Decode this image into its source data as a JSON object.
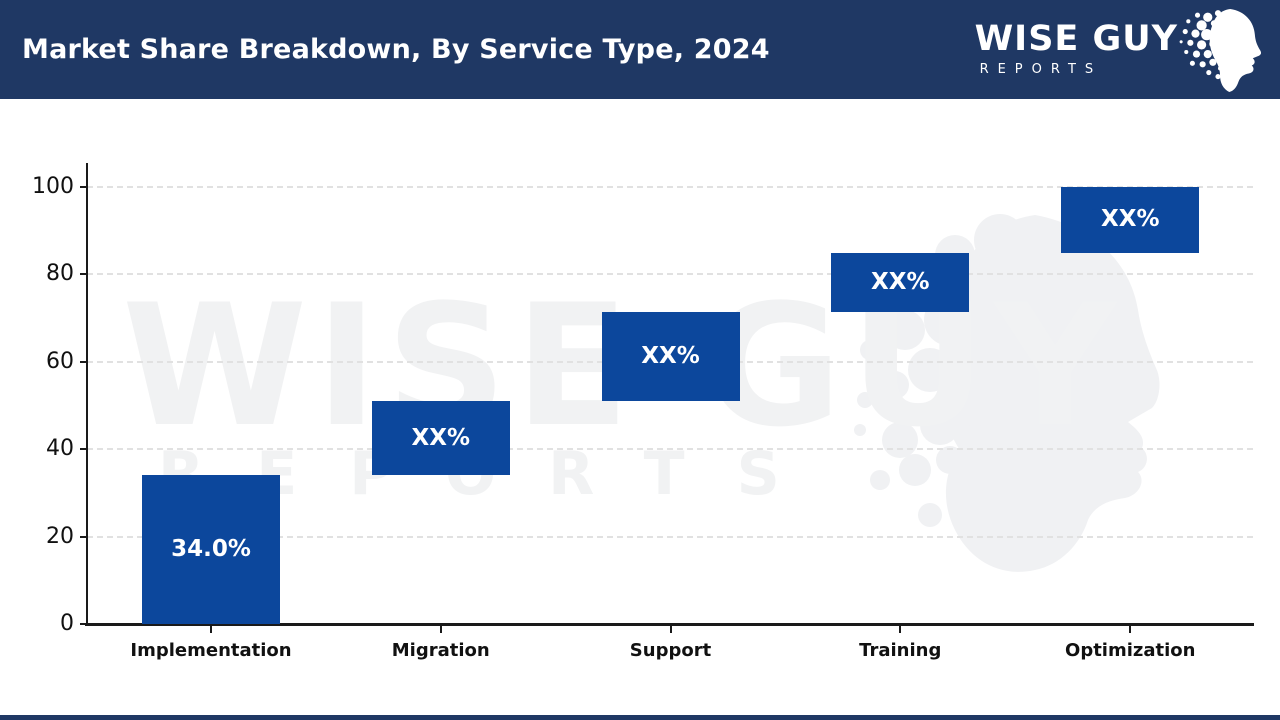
{
  "header": {
    "title": "Market Share Breakdown, By Service Type, 2024",
    "logo": {
      "line1": "WISE GUY",
      "line2": "REPORTS"
    }
  },
  "watermark": {
    "line1": "WISE GUY",
    "line2": "REPORTS"
  },
  "colors": {
    "header_bg": "#1f3864",
    "footer_bg": "#1f3864",
    "bar_fill": "#0c479c",
    "bar_label": "#ffffff",
    "axis": "#1a1a1a",
    "gridline": "#e1e1e1",
    "tick_label": "#111111",
    "watermark": "#f0f1f3"
  },
  "chart_data": {
    "type": "bar",
    "subtype": "waterfall",
    "title": "Market Share Breakdown, By Service Type, 2024",
    "categories": [
      "Implementation",
      "Migration",
      "Support",
      "Training",
      "Optimization"
    ],
    "segments": [
      {
        "category": "Implementation",
        "start": 0,
        "end": 34,
        "label": "34.0%"
      },
      {
        "category": "Migration",
        "start": 34,
        "end": 51,
        "label": "XX%"
      },
      {
        "category": "Support",
        "start": 51,
        "end": 71.5,
        "label": "XX%"
      },
      {
        "category": "Training",
        "start": 71.5,
        "end": 85,
        "label": "XX%"
      },
      {
        "category": "Optimization",
        "start": 85,
        "end": 100,
        "label": "XX%"
      }
    ],
    "xlabel": "",
    "ylabel": "",
    "ylim": [
      0,
      100
    ],
    "yticks": [
      0,
      20,
      40,
      60,
      80,
      100
    ],
    "grid": "horizontal-dashed",
    "legend": "none",
    "bar_color": "#0c479c",
    "value_label_color": "#ffffff"
  }
}
